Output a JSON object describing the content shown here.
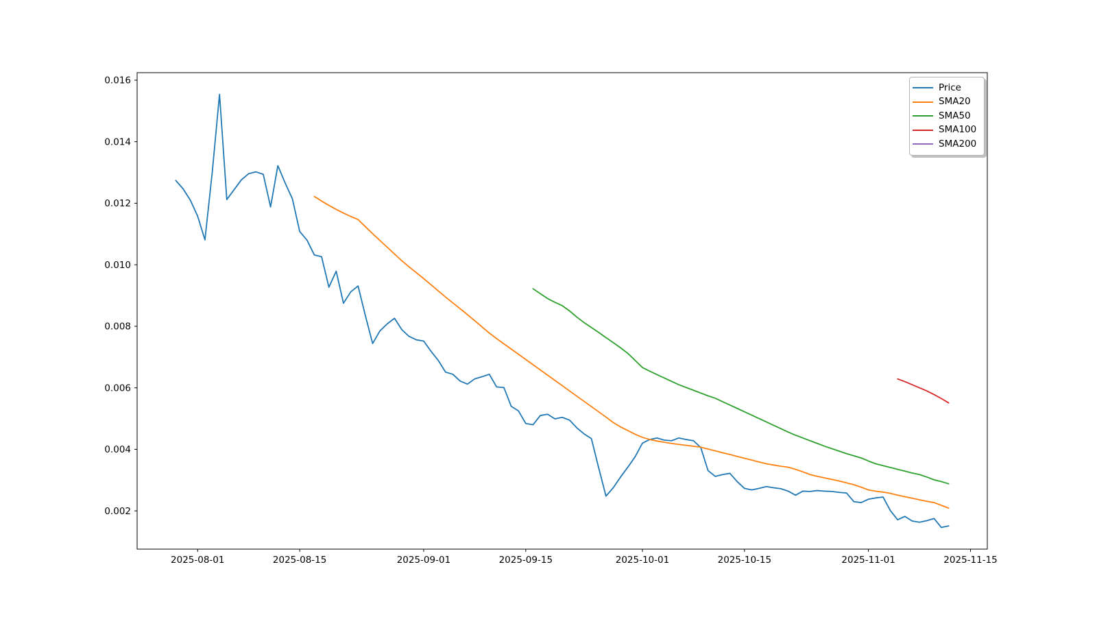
{
  "chart_data": {
    "type": "line",
    "title": "",
    "xlabel": "",
    "ylabel": "",
    "grid": false,
    "background": "#ffffff",
    "legend": {
      "position": "upper right",
      "shadow": true,
      "entries": [
        "Price",
        "SMA20",
        "SMA50",
        "SMA100",
        "SMA200"
      ]
    },
    "x_origin_date": "2025-08-01",
    "xlim_days_offset": [
      -8.3,
      108.3
    ],
    "ylim": [
      0.000756,
      0.016244
    ],
    "x_tick_labels": [
      "2025-08-01",
      "2025-08-15",
      "2025-09-01",
      "2025-09-15",
      "2025-10-01",
      "2025-10-15",
      "2025-11-01",
      "2025-11-15"
    ],
    "y_tick_labels": [
      "0.002",
      "0.004",
      "0.006",
      "0.008",
      "0.010",
      "0.012",
      "0.014",
      "0.016"
    ],
    "series": [
      {
        "name": "Price",
        "color": "#1f77b4",
        "frequency": "daily",
        "start_date": "2025-07-29",
        "end_date": "2025-11-12",
        "values": [
          0.01274,
          0.01247,
          0.0121,
          0.01158,
          0.01081,
          0.013,
          0.01554,
          0.01212,
          0.01244,
          0.01276,
          0.01296,
          0.01302,
          0.01294,
          0.01188,
          0.01322,
          0.01266,
          0.01214,
          0.01108,
          0.0108,
          0.01032,
          0.01026,
          0.00927,
          0.00979,
          0.00875,
          0.00912,
          0.00931,
          0.00835,
          0.00744,
          0.00785,
          0.00808,
          0.00826,
          0.00789,
          0.00767,
          0.00756,
          0.00752,
          0.00719,
          0.00689,
          0.00651,
          0.00644,
          0.00622,
          0.00612,
          0.00629,
          0.00636,
          0.00644,
          0.00603,
          0.00601,
          0.0054,
          0.00525,
          0.00484,
          0.0048,
          0.0051,
          0.00514,
          0.00499,
          0.00504,
          0.00495,
          0.0047,
          0.0045,
          0.00435,
          0.0034,
          0.00248,
          0.00275,
          0.0031,
          0.00342,
          0.00376,
          0.0042,
          0.00432,
          0.00437,
          0.0043,
          0.00428,
          0.00437,
          0.00432,
          0.00428,
          0.00406,
          0.00331,
          0.00312,
          0.00318,
          0.00322,
          0.00295,
          0.00273,
          0.00268,
          0.00273,
          0.00279,
          0.00275,
          0.00272,
          0.00264,
          0.00251,
          0.00264,
          0.00263,
          0.00266,
          0.00264,
          0.00263,
          0.0026,
          0.00258,
          0.0023,
          0.00227,
          0.00238,
          0.00242,
          0.00245,
          0.00201,
          0.00171,
          0.00182,
          0.00167,
          0.00163,
          0.00168,
          0.00175,
          0.00146,
          0.00151
        ]
      },
      {
        "name": "SMA20",
        "color": "#ff7f0e",
        "frequency": "daily",
        "start_date": "2025-08-17",
        "end_date": "2025-11-12",
        "values": [
          0.01222,
          0.01207,
          0.01193,
          0.0118,
          0.01168,
          0.01157,
          0.01147,
          0.01124,
          0.01101,
          0.01079,
          0.01057,
          0.01035,
          0.01013,
          0.00993,
          0.00974,
          0.00955,
          0.00935,
          0.00915,
          0.00895,
          0.00876,
          0.00857,
          0.00838,
          0.00818,
          0.00798,
          0.00778,
          0.0076,
          0.00743,
          0.00726,
          0.00709,
          0.00692,
          0.00675,
          0.00658,
          0.00641,
          0.00624,
          0.00607,
          0.0059,
          0.00573,
          0.00556,
          0.00539,
          0.00522,
          0.00505,
          0.00487,
          0.00473,
          0.00461,
          0.00449,
          0.00439,
          0.00432,
          0.00427,
          0.00423,
          0.00419,
          0.00416,
          0.00413,
          0.0041,
          0.00407,
          0.00401,
          0.00395,
          0.00389,
          0.00383,
          0.00377,
          0.00371,
          0.00365,
          0.00359,
          0.00353,
          0.00349,
          0.00345,
          0.00342,
          0.00335,
          0.00327,
          0.00318,
          0.00312,
          0.00307,
          0.00302,
          0.00297,
          0.00291,
          0.00285,
          0.00277,
          0.00268,
          0.00264,
          0.00261,
          0.00257,
          0.00251,
          0.00246,
          0.00241,
          0.00236,
          0.00231,
          0.00227,
          0.00218,
          0.00209
        ]
      },
      {
        "name": "SMA50",
        "color": "#2ca02c",
        "frequency": "daily",
        "start_date": "2025-09-16",
        "end_date": "2025-11-12",
        "values": [
          0.00922,
          0.00906,
          0.0089,
          0.00878,
          0.00867,
          0.0085,
          0.0083,
          0.00812,
          0.00796,
          0.0078,
          0.00763,
          0.00747,
          0.0073,
          0.00712,
          0.00689,
          0.00666,
          0.00654,
          0.00643,
          0.00632,
          0.00621,
          0.0061,
          0.00601,
          0.00592,
          0.00583,
          0.00574,
          0.00566,
          0.00555,
          0.00544,
          0.00533,
          0.00522,
          0.00511,
          0.005,
          0.00489,
          0.00478,
          0.00467,
          0.00456,
          0.00446,
          0.00437,
          0.00428,
          0.00419,
          0.0041,
          0.00402,
          0.00394,
          0.00386,
          0.00379,
          0.00372,
          0.00362,
          0.00353,
          0.00347,
          0.00341,
          0.00335,
          0.00329,
          0.00323,
          0.00318,
          0.0031,
          0.00301,
          0.00295,
          0.00288
        ]
      },
      {
        "name": "SMA100",
        "color": "#d62728",
        "frequency": "daily",
        "start_date": "2025-11-05",
        "end_date": "2025-11-12",
        "values": [
          0.00629,
          0.0062,
          0.0061,
          0.006,
          0.0059,
          0.00578,
          0.00565,
          0.00551
        ]
      },
      {
        "name": "SMA200",
        "color": "#9467bd",
        "frequency": "daily",
        "start_date": null,
        "end_date": null,
        "values": []
      }
    ]
  }
}
